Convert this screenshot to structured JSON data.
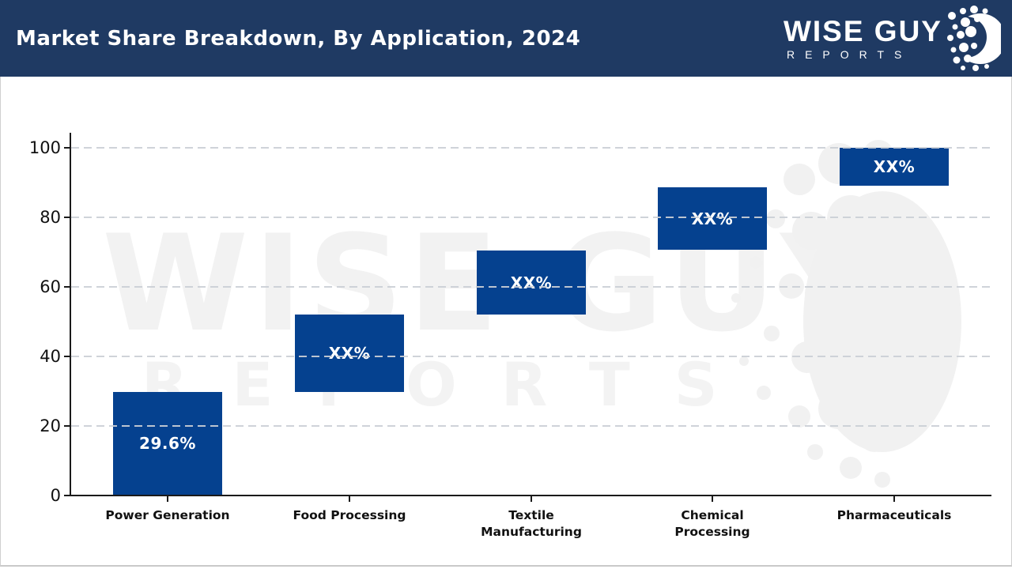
{
  "header": {
    "title": "Market Share Breakdown, By Application, 2024",
    "logo": {
      "line1": "WISE GUY",
      "line2": "REPORTS"
    }
  },
  "watermark": {
    "line1": "WISE GUY",
    "line2": "REPORTS"
  },
  "colors": {
    "header_bg": "#1f3a63",
    "bar": "#05418f",
    "axis": "#1a1a1a",
    "grid_dash": "#d9d9d9",
    "card_border": "#c9c9c9",
    "watermark": "#f2f2f2",
    "bar_label_text": "#ffffff"
  },
  "chart_data": {
    "type": "bar",
    "subtype": "waterfall",
    "title": "Market Share Breakdown, By Application, 2024",
    "xlabel": "",
    "ylabel": "",
    "ylim": [
      0,
      103.5
    ],
    "y_ticks": [
      0,
      20,
      40,
      60,
      80,
      100
    ],
    "grid": "horizontal-dashed",
    "legend": "none",
    "bar_color": "#05418f",
    "categories": [
      "Power Generation",
      "Food Processing",
      "Textile Manufacturing",
      "Chemical Processing",
      "Pharmaceuticals"
    ],
    "category_display": [
      "Power Generation",
      "Food Processing",
      "Textile\nManufacturing",
      "Chemical\nProcessing",
      "Pharmaceuticals"
    ],
    "segments": [
      {
        "category": "Power Generation",
        "start": 0,
        "end": 29.6,
        "label": "29.6%"
      },
      {
        "category": "Food Processing",
        "start": 29.6,
        "end": 51.8,
        "label": "XX%"
      },
      {
        "category": "Textile Manufacturing",
        "start": 51.8,
        "end": 70.2,
        "label": "XX%"
      },
      {
        "category": "Chemical Processing",
        "start": 70.4,
        "end": 88.4,
        "label": "XX%"
      },
      {
        "category": "Pharmaceuticals",
        "start": 88.9,
        "end": 99.7,
        "label": "XX%"
      }
    ]
  }
}
